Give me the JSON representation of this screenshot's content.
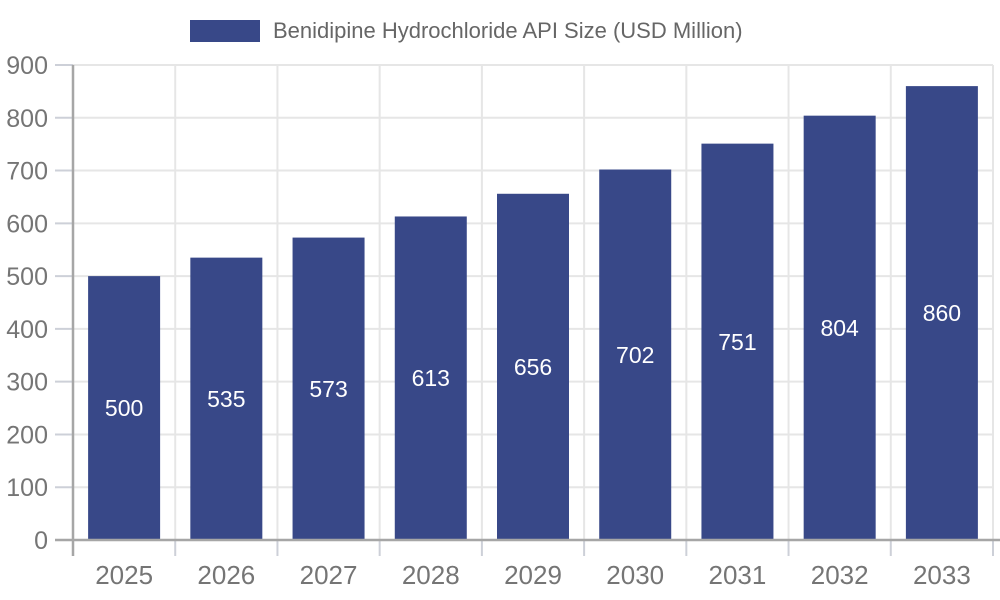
{
  "legend": {
    "label": "Benidipine Hydrochloride API Size (USD Million)"
  },
  "chart_data": {
    "type": "bar",
    "title": "Benidipine Hydrochloride API Size (USD Million)",
    "categories": [
      "2025",
      "2026",
      "2027",
      "2028",
      "2029",
      "2030",
      "2031",
      "2032",
      "2033"
    ],
    "values": [
      500,
      535,
      573,
      613,
      656,
      702,
      751,
      804,
      860
    ],
    "xlabel": "",
    "ylabel": "",
    "ylim": [
      0,
      900
    ],
    "ytick_step": 100,
    "yticks": [
      0,
      100,
      200,
      300,
      400,
      500,
      600,
      700,
      800,
      900
    ],
    "grid": true,
    "legend_position": "top",
    "value_labels_inside_bars": true,
    "colors": {
      "bar": "#384888",
      "bar_label": "#FFFFFF",
      "tick_label": "#757575",
      "legend_text": "#666666",
      "axis_line": "#A6A6A6",
      "tick_line": "#CDD0D8",
      "grid_line": "#E6E6E6",
      "background": "#FFFFFF"
    }
  }
}
